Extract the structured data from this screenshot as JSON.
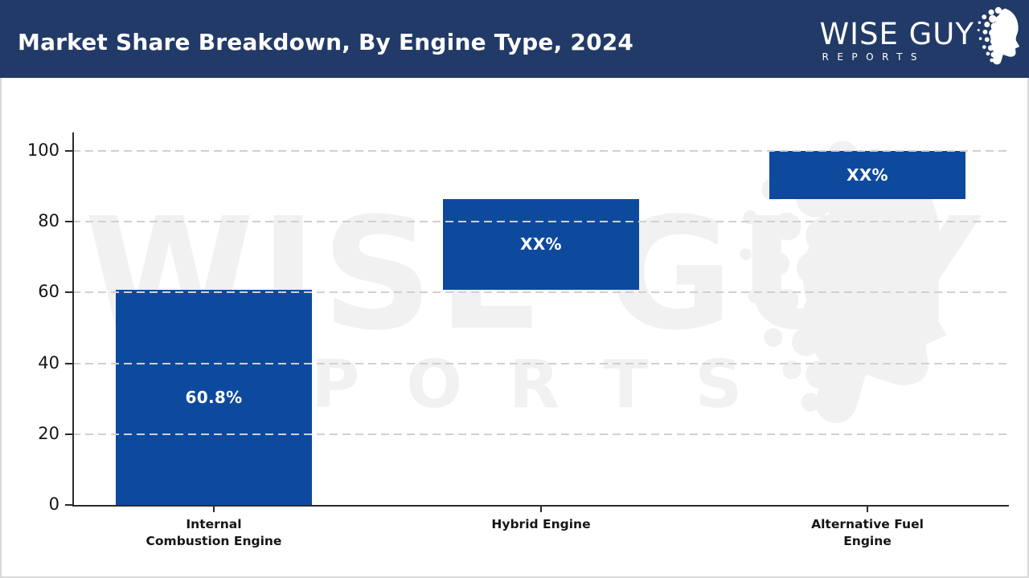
{
  "header": {
    "title": "Market Share Breakdown, By Engine Type, 2024",
    "bg_color": "#223a67",
    "logo": {
      "line1": "WISE GUY",
      "line2": "REPORTS",
      "icon": "dotted-head-profile-icon"
    }
  },
  "watermark": {
    "line1": "WISE GUY",
    "line2": "REPORTS",
    "icon": "dotted-head-profile-icon",
    "color": "#f1f1f1"
  },
  "chart_data": {
    "type": "bar",
    "subtype": "waterfall",
    "title": "",
    "xlabel": "",
    "ylabel": "",
    "categories": [
      "Internal\nCombustion Engine",
      "Hybrid Engine",
      "Alternative Fuel\nEngine"
    ],
    "segments": [
      {
        "category": "Internal Combustion Engine",
        "start": 0,
        "end": 60.8,
        "label": "60.8%"
      },
      {
        "category": "Hybrid Engine",
        "start": 60.8,
        "end": 86.5,
        "label": "XX%"
      },
      {
        "category": "Alternative Fuel Engine",
        "start": 86.5,
        "end": 100,
        "label": "XX%"
      }
    ],
    "yticks": [
      0,
      20,
      40,
      60,
      80,
      100
    ],
    "ylim": [
      0,
      105
    ],
    "grid": true,
    "grid_style": "dashed",
    "legend": "none",
    "colors": {
      "bar": "#0d4a9e",
      "grid": "#d0d0d0",
      "axis": "#2b2b2b",
      "tick_text": "#151515",
      "bar_label_text": "#ffffff"
    }
  }
}
